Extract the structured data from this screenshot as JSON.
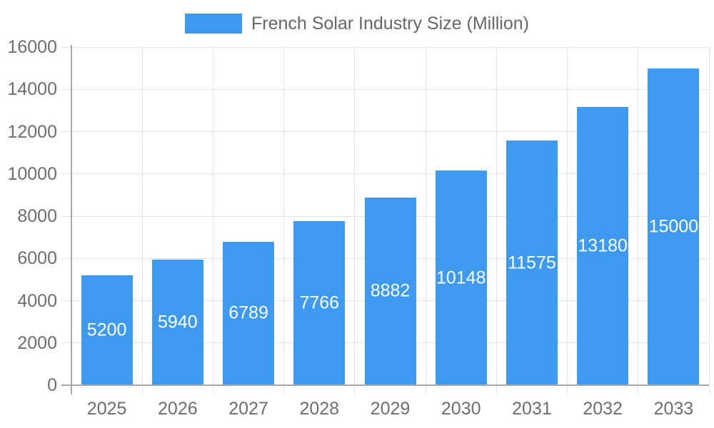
{
  "legend": {
    "label": "French Solar Industry Size (Million)",
    "swatch_color": "#3d9af0"
  },
  "chart_data": {
    "type": "bar",
    "title": "French Solar Industry Size (Million)",
    "series_name": "French Solar Industry Size (Million)",
    "categories": [
      "2025",
      "2026",
      "2027",
      "2028",
      "2029",
      "2030",
      "2031",
      "2032",
      "2033"
    ],
    "values": [
      5200,
      5940,
      6789,
      7766,
      8882,
      10148,
      11575,
      13180,
      15000
    ],
    "xlabel": "",
    "ylabel": "",
    "ylim": [
      0,
      16000
    ],
    "ytick_step": 2000,
    "ytick_labels": [
      "0",
      "2000",
      "4000",
      "6000",
      "8000",
      "10000",
      "12000",
      "14000",
      "16000"
    ],
    "grid": true,
    "legend_position": "top",
    "bar_color": "#3d9af0",
    "bar_label_color": "#ffffff",
    "grid_color": "#e3e3e3",
    "axis_line_color": "#a8a8a8",
    "axis_text_color": "#6e6e6e"
  }
}
